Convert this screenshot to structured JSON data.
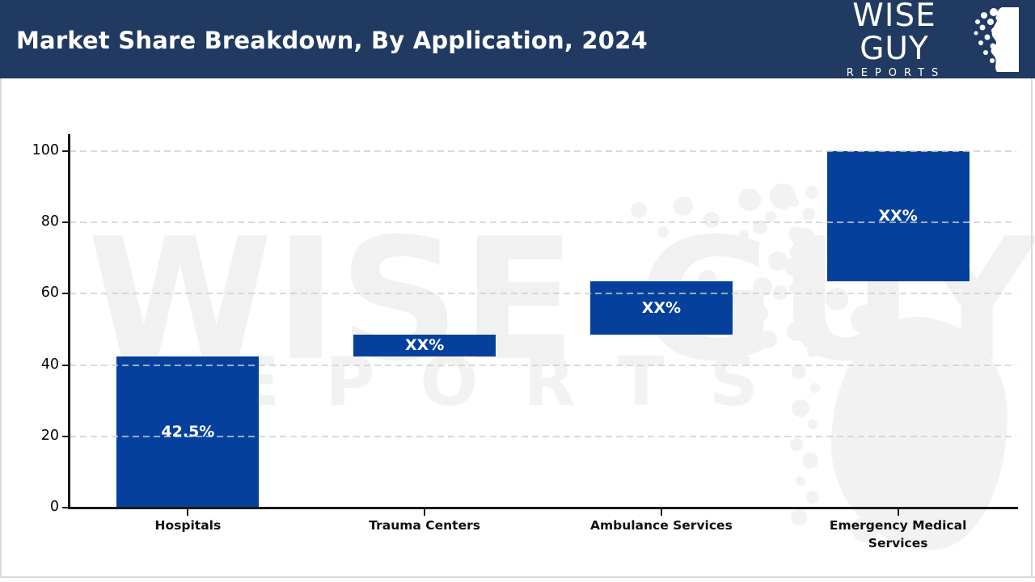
{
  "header": {
    "title": "Market Share Breakdown, By Application, 2024",
    "logo": {
      "line1": "WISE GUY",
      "line2": "REPORTS"
    }
  },
  "watermark": {
    "line1": "WISE GUY",
    "line2": "REPORTS"
  },
  "chart_data": {
    "type": "bar",
    "subtype": "floating-waterfall",
    "title": "Market Share Breakdown, By Application, 2024",
    "categories": [
      "Hospitals",
      "Trauma Centers",
      "Ambulance Services",
      "Emergency Medical Services"
    ],
    "bars": [
      {
        "category": "Hospitals",
        "start": 0,
        "end": 42.5,
        "label": "42.5%"
      },
      {
        "category": "Trauma Centers",
        "start": 42.5,
        "end": 48.5,
        "label": "XX%"
      },
      {
        "category": "Ambulance Services",
        "start": 48.5,
        "end": 63.5,
        "label": "XX%"
      },
      {
        "category": "Emergency Medical Services",
        "start": 63.5,
        "end": 100,
        "label": "XX%"
      }
    ],
    "yticks": [
      0,
      20,
      40,
      60,
      80,
      100
    ],
    "ylim": [
      0,
      104
    ],
    "xlabel": "",
    "ylabel": "",
    "grid": "horizontal-dashed",
    "legend": null,
    "bar_color": "#05419c",
    "bar_label_color": "#ffffff",
    "header_color": "#213a62",
    "grid_color": "#d9d9d9",
    "axis_color": "#1a1a1a"
  }
}
